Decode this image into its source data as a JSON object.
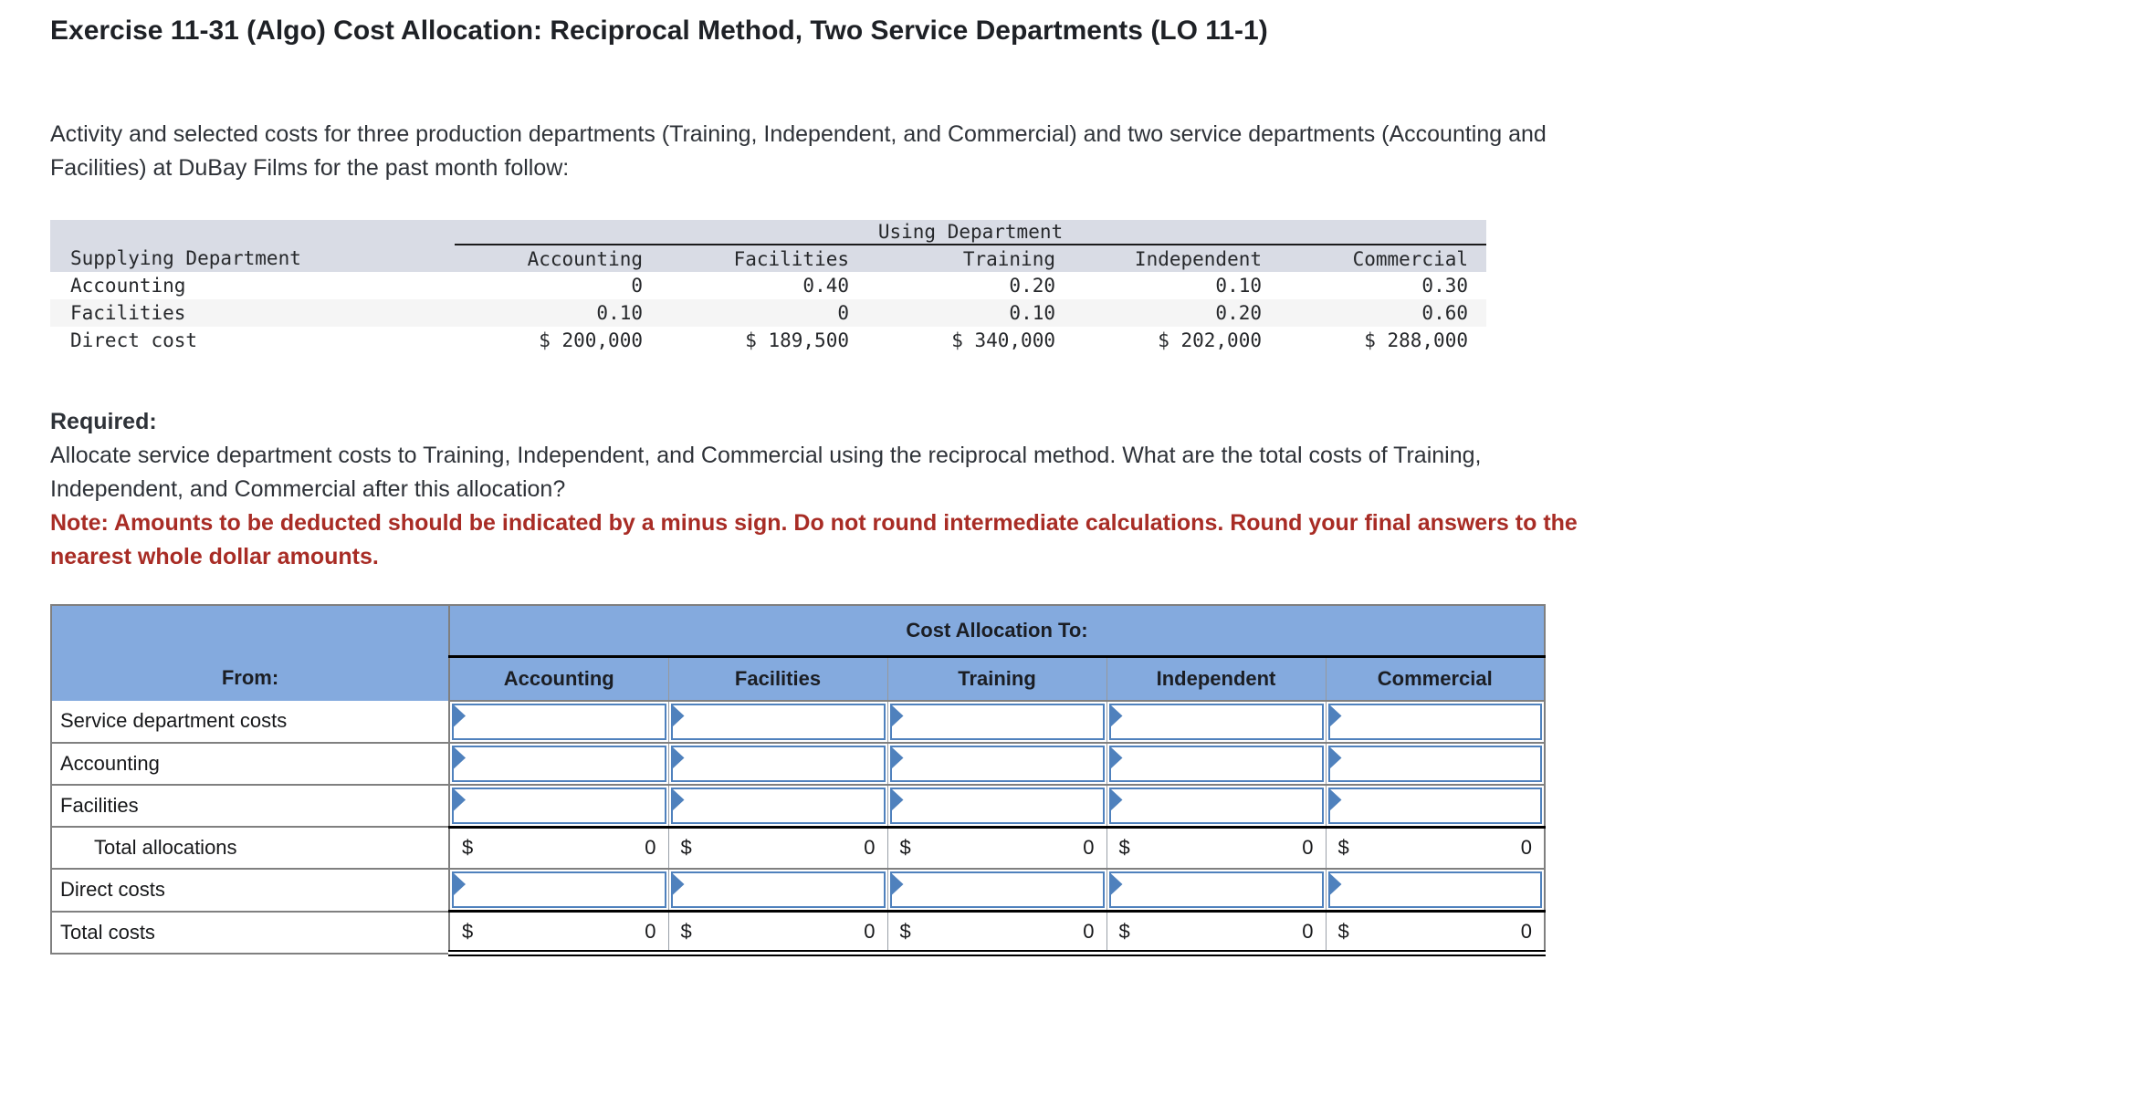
{
  "header": {
    "title": "Exercise 11-31 (Algo) Cost Allocation: Reciprocal Method, Two Service Departments (LO 11-1)"
  },
  "intro": "Activity and selected costs for three production departments (Training, Independent, and Commercial) and two service departments (Accounting and Facilities) at DuBay Films for the past month follow:",
  "source_table": {
    "spanner": "Using Department",
    "col_headers": [
      "Supplying Department",
      "Accounting",
      "Facilities",
      "Training",
      "Independent",
      "Commercial"
    ],
    "rows": [
      {
        "label": "Accounting",
        "values": [
          "0",
          "0.40",
          "0.20",
          "0.10",
          "0.30"
        ]
      },
      {
        "label": "Facilities",
        "values": [
          "0.10",
          "0",
          "0.10",
          "0.20",
          "0.60"
        ]
      },
      {
        "label": "Direct cost",
        "values": [
          "$ 200,000",
          "$ 189,500",
          "$ 340,000",
          "$ 202,000",
          "$ 288,000"
        ]
      }
    ]
  },
  "required": {
    "heading": "Required:",
    "question": "Allocate service department costs to Training, Independent, and Commercial using the reciprocal method. What are the total costs of Training, Independent, and Commercial after this allocation?",
    "note": "Note: Amounts to be deducted should be indicated by a minus sign. Do not round intermediate calculations. Round your final answers to the nearest whole dollar amounts."
  },
  "allocation_table": {
    "spanner": "Cost Allocation To:",
    "from_label": "From:",
    "col_headers": [
      "Accounting",
      "Facilities",
      "Training",
      "Independent",
      "Commercial"
    ],
    "rows": {
      "service": "Service department costs",
      "accounting": "Accounting",
      "facilities": "Facilities",
      "total_allocations": "Total allocations",
      "direct_costs": "Direct costs",
      "total_costs": "Total costs"
    },
    "currency_symbol": "$",
    "zero_value": "0"
  },
  "colors": {
    "header_blue": "#84aade",
    "input_border_blue": "#4f81bd",
    "note_red": "#a82c25",
    "source_header_bg": "#d9dce5",
    "source_stripe_bg": "#f5f5f5"
  }
}
